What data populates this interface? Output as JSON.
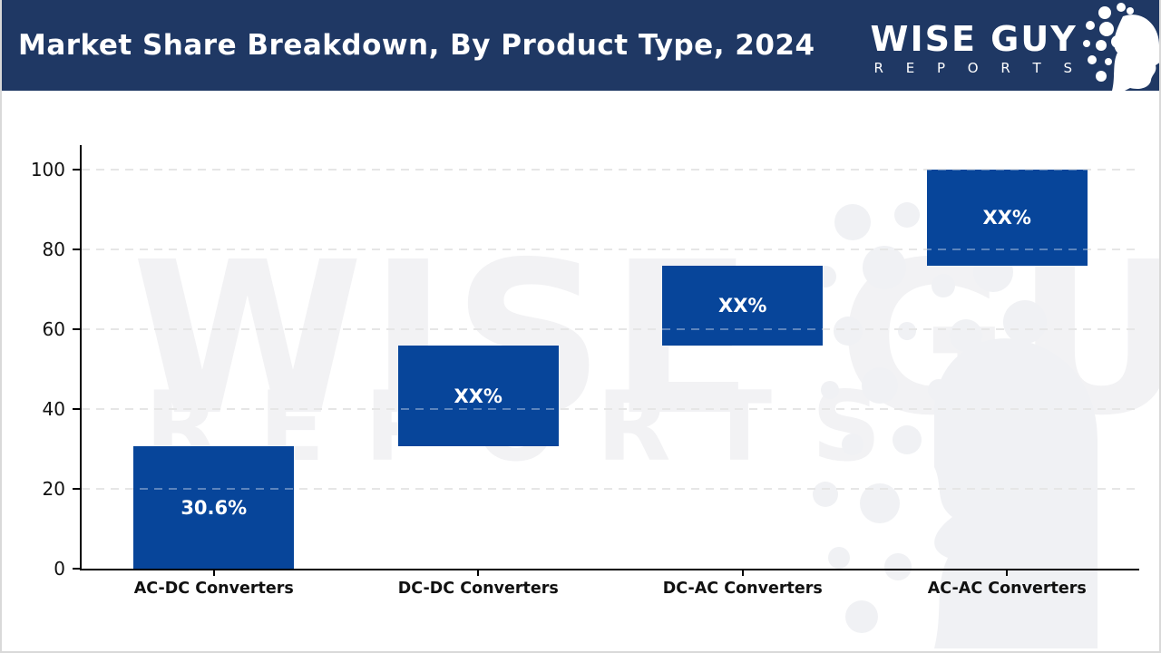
{
  "header": {
    "title": "Market Share Breakdown, By Product Type, 2024",
    "bg_color": "#1F3864",
    "brand": {
      "line1": "WISE GUY",
      "line2": "R E P O R T S"
    }
  },
  "watermark": {
    "line1": "WISE GUY",
    "line2": "REPORTS"
  },
  "chart_data": {
    "type": "bar",
    "subtype": "waterfall-floating-bars",
    "title": "Market Share Breakdown, By Product Type, 2024",
    "xlabel": "",
    "ylabel": "",
    "categories": [
      "AC-DC Converters",
      "DC-DC Converters",
      "DC-AC Converters",
      "AC-AC Converters"
    ],
    "segments": [
      {
        "start": 0,
        "end": 30.6,
        "label": "30.6%"
      },
      {
        "start": 30.6,
        "end": 55.9,
        "label": "XX%"
      },
      {
        "start": 55.9,
        "end": 75.9,
        "label": "XX%"
      },
      {
        "start": 75.9,
        "end": 100,
        "label": "XX%"
      }
    ],
    "yticks": [
      0,
      20,
      40,
      60,
      80,
      100
    ],
    "ylim": [
      0,
      105
    ],
    "grid": "dashed-horizontal",
    "legend": "none",
    "bar_color": "#07459A",
    "grid_color": "#D9D9D9",
    "axis_color": "#000000"
  }
}
